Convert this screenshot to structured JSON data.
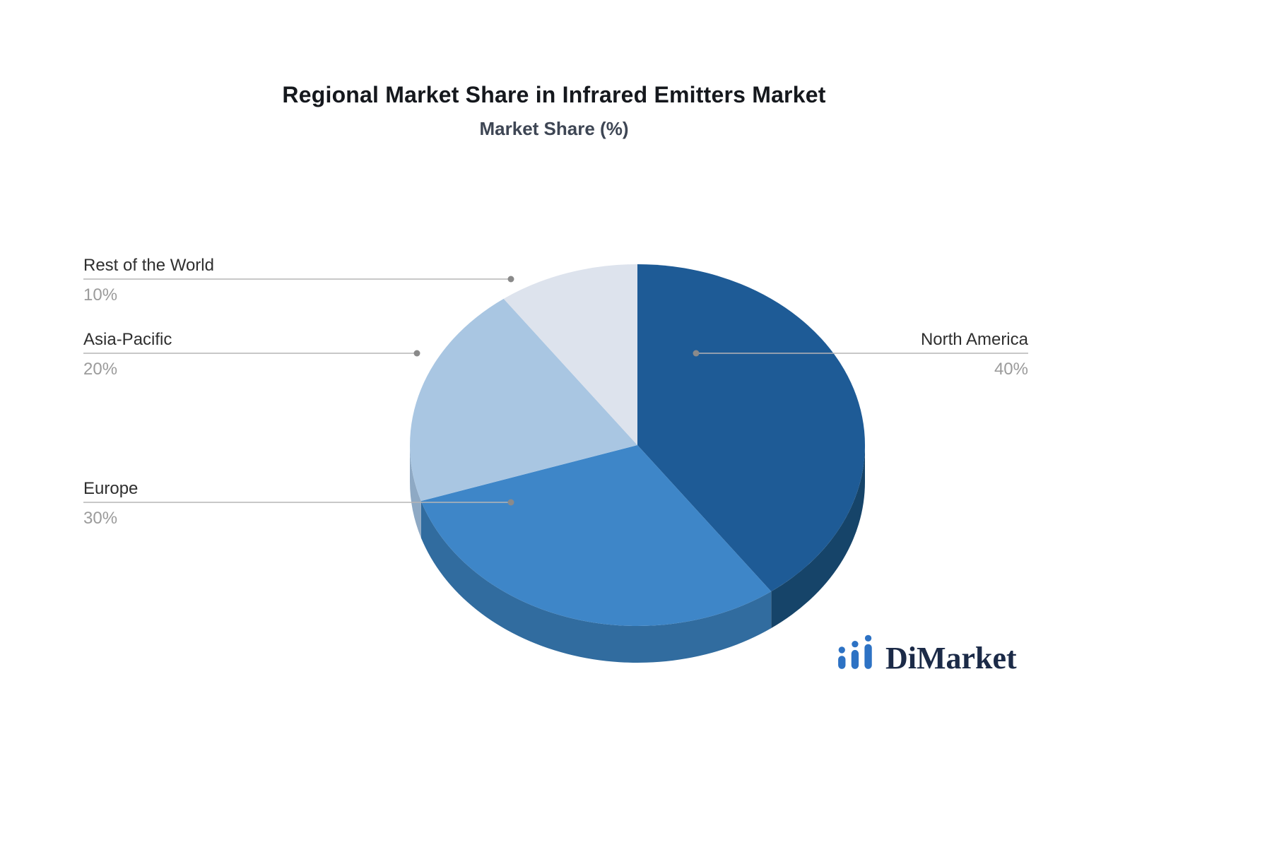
{
  "chart_data": {
    "type": "pie",
    "title": "Regional Market Share in Infrared Emitters Market",
    "subtitle": "Market Share (%)",
    "unit": "%",
    "style": "3d-pie",
    "start_angle_deg": 0,
    "direction": "clockwise",
    "legend_position": "none",
    "labels_position": "outside-leader-lines",
    "slices": [
      {
        "label": "North America",
        "value": 40,
        "color": "#1e5b96",
        "depth_color": "#164469"
      },
      {
        "label": "Europe",
        "value": 30,
        "color": "#3e86c8",
        "depth_color": "#316c9f"
      },
      {
        "label": "Asia-Pacific",
        "value": 20,
        "color": "#a9c6e2",
        "depth_color": "#8ea9c4"
      },
      {
        "label": "Rest of the World",
        "value": 10,
        "color": "#dde3ed",
        "depth_color": "#bcc6d6"
      }
    ],
    "leader_line_color": "#b5b5b5",
    "leader_dot_color": "#8a8a8a",
    "label_color": "#2f2f2f",
    "value_color": "#9b9b9b"
  },
  "logo": {
    "text": "DiMarket",
    "icon_color": "#2d72c4",
    "text_color": "#1b2a47"
  }
}
